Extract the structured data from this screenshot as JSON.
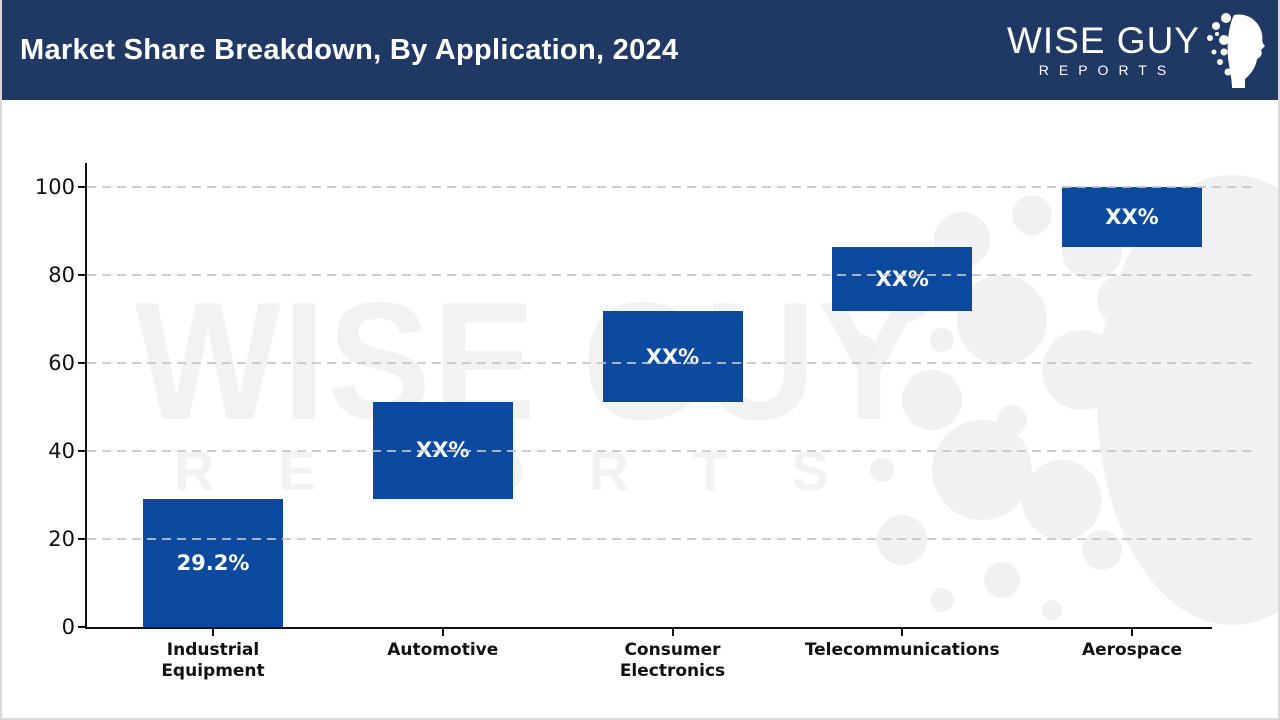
{
  "header": {
    "title": "Market Share Breakdown, By Application, 2024",
    "bg_color": "#1f3864",
    "logo": {
      "line1": "WISE GUY",
      "line2": "REPORTS"
    }
  },
  "watermark": {
    "line1": "WISE GUY",
    "line2": "REPORTS"
  },
  "chart_data": {
    "type": "bar",
    "subtype": "waterfall",
    "title": "Market Share Breakdown, By Application, 2024",
    "categories": [
      "Industrial Equipment",
      "Automotive",
      "Consumer Electronics",
      "Telecommunications",
      "Aerospace"
    ],
    "category_lines": [
      [
        "Industrial",
        "Equipment"
      ],
      [
        "Automotive"
      ],
      [
        "Consumer",
        "Electronics"
      ],
      [
        "Telecommunications"
      ],
      [
        "Aerospace"
      ]
    ],
    "segments": [
      {
        "category": "Industrial Equipment",
        "start": 0,
        "end": 29.2,
        "label": "29.2%"
      },
      {
        "category": "Automotive",
        "start": 29.2,
        "end": 51.1,
        "label": "XX%"
      },
      {
        "category": "Consumer Electronics",
        "start": 51.1,
        "end": 71.8,
        "label": "XX%"
      },
      {
        "category": "Telecommunications",
        "start": 71.8,
        "end": 86.4,
        "label": "XX%"
      },
      {
        "category": "Aerospace",
        "start": 86.4,
        "end": 100,
        "label": "XX%"
      }
    ],
    "xlabel": "",
    "ylabel": "",
    "ylim": [
      0,
      100
    ],
    "yticks": [
      0,
      20,
      40,
      60,
      80,
      100
    ],
    "grid": "horizontal-dashed",
    "legend": "none",
    "bar_color": "#0b4a9e",
    "bar_label_color": "#ffffff",
    "axis_color": "#111111",
    "grid_color": "#d8d8d8"
  }
}
